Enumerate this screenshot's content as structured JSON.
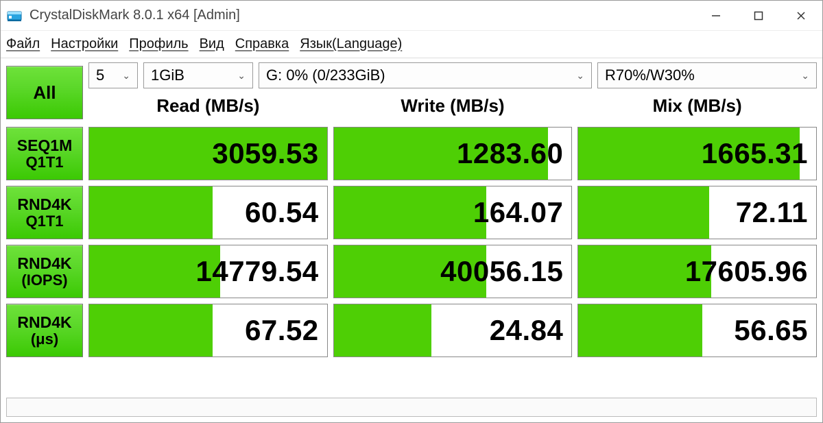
{
  "window": {
    "title": "CrystalDiskMark 8.0.1 x64 [Admin]"
  },
  "menu": {
    "items": [
      "Файл",
      "Настройки",
      "Профиль",
      "Вид",
      "Справка",
      "Язык(Language)"
    ]
  },
  "colors": {
    "bar_fill": "#4ecf05",
    "button_green_top": "#6ee23a",
    "button_green_bottom": "#3bc903",
    "cell_border": "#888888",
    "window_border": "#999999"
  },
  "controls": {
    "all_label": "All",
    "test_count": "5",
    "test_size": "1GiB",
    "drive": "G: 0% (0/233GiB)",
    "mix": "R70%/W30%"
  },
  "headers": {
    "read": "Read (MB/s)",
    "write": "Write (MB/s)",
    "mix": "Mix (MB/s)"
  },
  "rows": [
    {
      "button": {
        "line1": "SEQ1M",
        "line2": "Q1T1"
      },
      "read": {
        "value": "3059.53",
        "fill_pct": 100
      },
      "write": {
        "value": "1283.60",
        "fill_pct": 90
      },
      "mix": {
        "value": "1665.31",
        "fill_pct": 93
      }
    },
    {
      "button": {
        "line1": "RND4K",
        "line2": "Q1T1"
      },
      "read": {
        "value": "60.54",
        "fill_pct": 52
      },
      "write": {
        "value": "164.07",
        "fill_pct": 64
      },
      "mix": {
        "value": "72.11",
        "fill_pct": 55
      }
    },
    {
      "button": {
        "line1": "RND4K",
        "line2": "(IOPS)"
      },
      "read": {
        "value": "14779.54",
        "fill_pct": 55
      },
      "write": {
        "value": "40056.15",
        "fill_pct": 64
      },
      "mix": {
        "value": "17605.96",
        "fill_pct": 56
      }
    },
    {
      "button": {
        "line1": "RND4K",
        "line2": "(μs)"
      },
      "read": {
        "value": "67.52",
        "fill_pct": 52
      },
      "write": {
        "value": "24.84",
        "fill_pct": 41
      },
      "mix": {
        "value": "56.65",
        "fill_pct": 52
      }
    }
  ],
  "statusbar": ""
}
